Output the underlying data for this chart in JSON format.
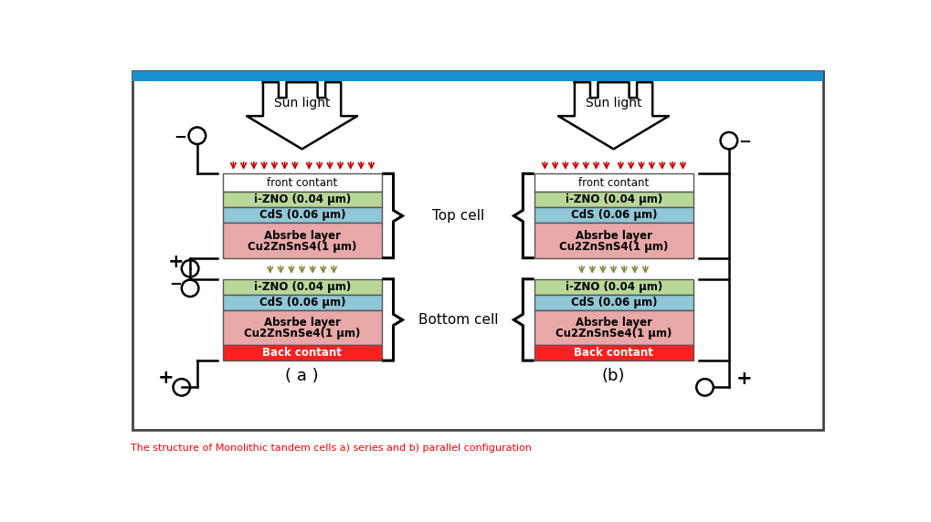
{
  "bg_color": "#ffffff",
  "outer_border_color": "#444444",
  "blue_bar_color": "#1a8fce",
  "title_caption": "The structure of Monolithic tandem cells a) series and b) parallel configuration",
  "panel_a_label": "( a )",
  "panel_b_label": "(b)",
  "top_cell_label": "Top cell",
  "bottom_cell_label": "Bottom cell",
  "front_contact_color": "#ffffff",
  "izno_color": "#b8d898",
  "cds_color": "#90c8d8",
  "absorber_color": "#e8a8a8",
  "back_contact_color": "#ff2020",
  "sunlight_text": "Sun light",
  "red_arrow_color": "#cc0000",
  "gray_arrow_color": "#888844",
  "border_color": "#555555",
  "layer_border_color": "#888888"
}
